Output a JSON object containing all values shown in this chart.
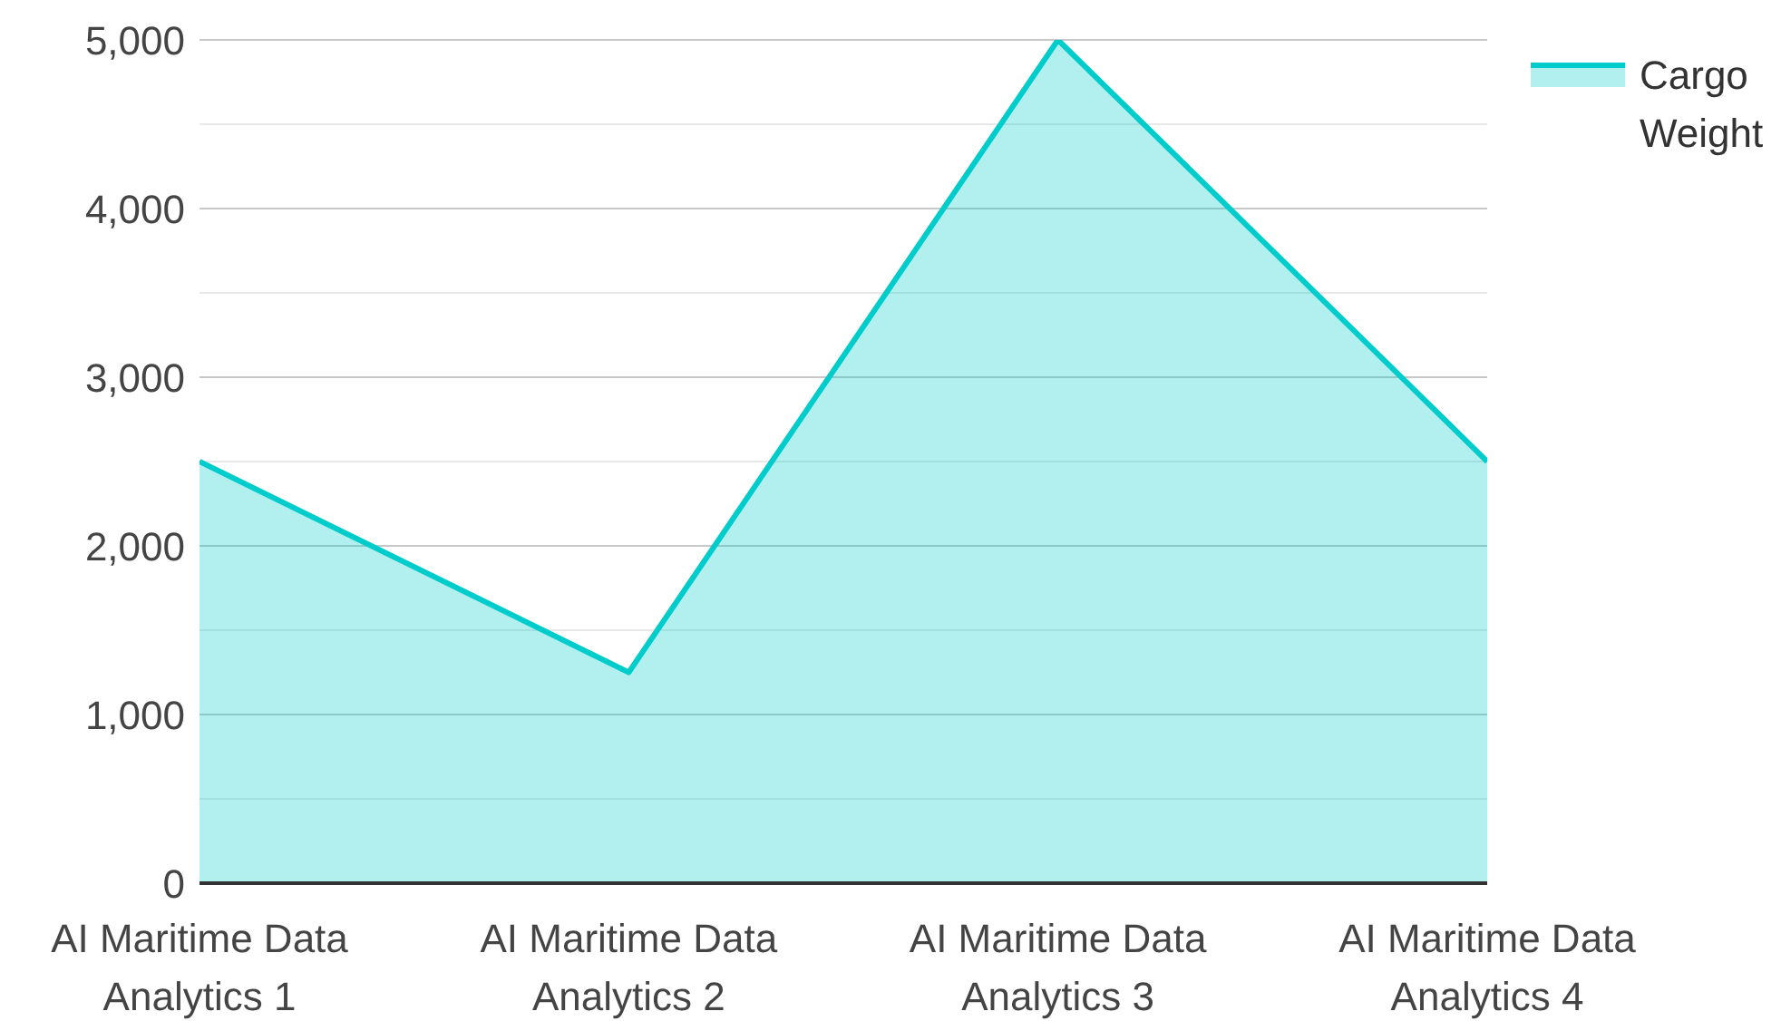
{
  "chart_data": {
    "type": "area",
    "categories": [
      "AI Maritime Data Analytics 1",
      "AI Maritime Data Analytics 2",
      "AI Maritime Data Analytics 3",
      "AI Maritime Data Analytics 4"
    ],
    "series": [
      {
        "name": "Cargo Weight",
        "color": "#00cccc",
        "values": [
          2500,
          1250,
          5000,
          2500
        ]
      }
    ],
    "ylim": [
      0,
      5000
    ],
    "yticks": [
      {
        "value": 0,
        "label": "0"
      },
      {
        "value": 500,
        "label": null
      },
      {
        "value": 1000,
        "label": "1,000"
      },
      {
        "value": 1500,
        "label": null
      },
      {
        "value": 2000,
        "label": "2,000"
      },
      {
        "value": 2500,
        "label": null
      },
      {
        "value": 3000,
        "label": "3,000"
      },
      {
        "value": 3500,
        "label": null
      },
      {
        "value": 4000,
        "label": "4,000"
      },
      {
        "value": 4500,
        "label": null
      },
      {
        "value": 5000,
        "label": "5,000"
      }
    ],
    "grid": "y",
    "legend": "top right"
  }
}
